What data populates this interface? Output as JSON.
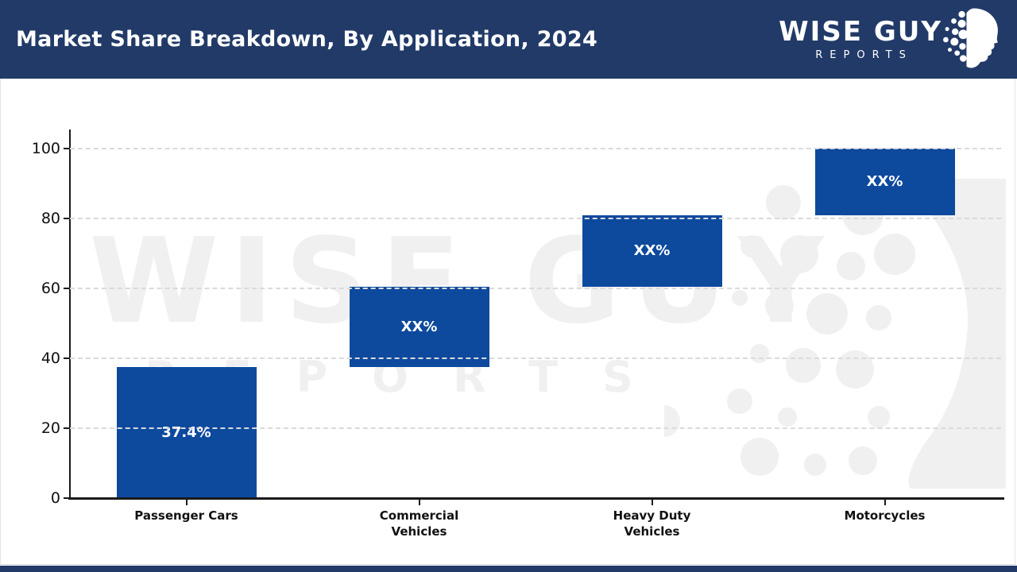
{
  "header": {
    "title": "Market Share Breakdown, By Application, 2024",
    "logo_line1": "WISE GUY",
    "logo_line2": "REPORTS"
  },
  "watermark": {
    "line1": "WISE GUY",
    "line2": "REPORTS"
  },
  "colors": {
    "header_bg": "#223A68",
    "bar": "#0D4A9E",
    "bar_label": "#FFFFFF",
    "grid": "#DADADA",
    "axis": "#1A1A1A",
    "watermark": "#F0F0F0"
  },
  "chart_data": {
    "type": "bar",
    "subtype": "waterfall",
    "title": "Market Share Breakdown, By Application, 2024",
    "categories": [
      "Passenger Cars",
      "Commercial Vehicles",
      "Heavy Duty Vehicles",
      "Motorcycles"
    ],
    "category_lines": [
      [
        "Passenger Cars"
      ],
      [
        "Commercial",
        "Vehicles"
      ],
      [
        "Heavy Duty",
        "Vehicles"
      ],
      [
        "Motorcycles"
      ]
    ],
    "segments": [
      {
        "category": "Passenger Cars",
        "start": 0,
        "end": 37.4,
        "value": 37.4,
        "label": "37.4%"
      },
      {
        "category": "Commercial Vehicles",
        "start": 37.4,
        "end": 60.4,
        "value": 23.0,
        "label": "XX%"
      },
      {
        "category": "Heavy Duty Vehicles",
        "start": 60.4,
        "end": 81.0,
        "value": 20.6,
        "label": "XX%"
      },
      {
        "category": "Motorcycles",
        "start": 81.0,
        "end": 100,
        "value": 19.0,
        "label": "XX%"
      }
    ],
    "y_ticks": [
      0,
      20,
      40,
      60,
      80,
      100
    ],
    "ylim": [
      0,
      105
    ],
    "xlabel": "",
    "ylabel": "",
    "grid": "horizontal-dashed",
    "legend": "none"
  }
}
